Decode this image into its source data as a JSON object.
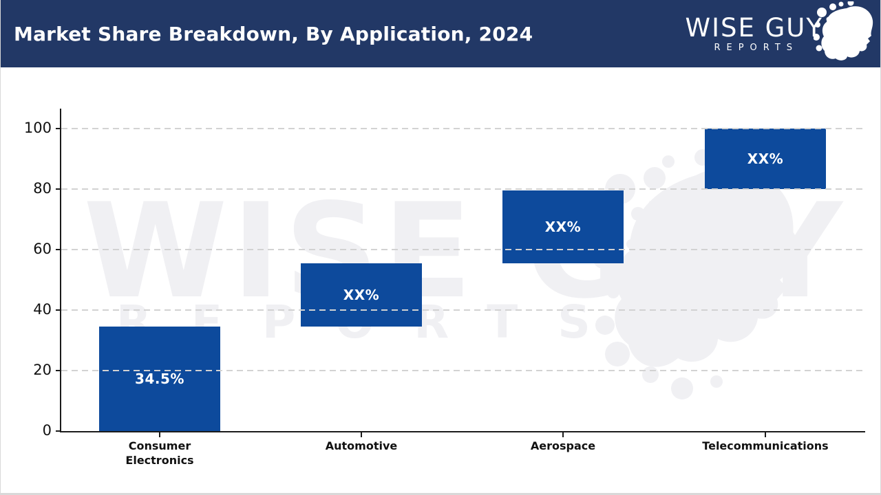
{
  "header": {
    "title": "Market Share Breakdown, By Application, 2024",
    "logo": {
      "line1": "WISE GUY",
      "line2": "REPORTS"
    }
  },
  "watermark": {
    "line1": "WISE GUY",
    "line2": "REPORTS"
  },
  "colors": {
    "header_bg": "#223866",
    "title_color": "#ffffff",
    "bar_color": "#0d4a9c",
    "bar_label_color": "#ffffff",
    "grid_color": "#d2d2d2",
    "axis_color": "#1a1a1a",
    "watermark_color": "#f0f0f3"
  },
  "chart_data": {
    "type": "bar",
    "subtype": "waterfall-style floating bars",
    "title": "Market Share Breakdown, By Application, 2024",
    "categories": [
      "Consumer Electronics",
      "Automotive",
      "Aerospace",
      "Telecommunications"
    ],
    "category_labels": [
      "Consumer\nElectronics",
      "Automotive",
      "Aerospace",
      "Telecommunications"
    ],
    "series": [
      {
        "name": "Market Share (%)",
        "segments": [
          {
            "category": "Consumer Electronics",
            "start": 0,
            "end": 34.5,
            "label": "34.5%"
          },
          {
            "category": "Automotive",
            "start": 34.5,
            "end": 55.5,
            "label": "XX%"
          },
          {
            "category": "Aerospace",
            "start": 55.5,
            "end": 79.5,
            "label": "XX%"
          },
          {
            "category": "Telecommunications",
            "start": 80,
            "end": 100,
            "label": "XX%"
          }
        ]
      }
    ],
    "xlabel": "",
    "ylabel": "",
    "ylim": [
      0,
      100
    ],
    "yticks": [
      0,
      20,
      40,
      60,
      80,
      100
    ],
    "grid": "horizontal dashed",
    "legend": "none"
  }
}
